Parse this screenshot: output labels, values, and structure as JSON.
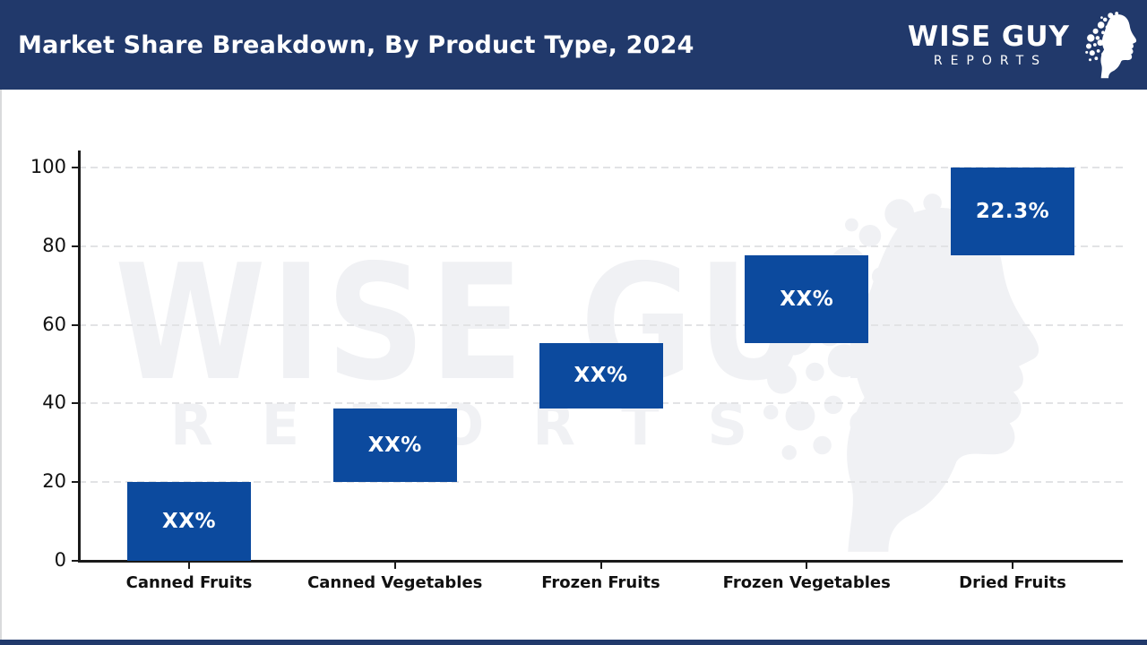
{
  "header": {
    "title": "Market Share Breakdown, By Product Type, 2024",
    "background_color": "#21396B",
    "logo": {
      "line1": "WISE GUY",
      "line2": "REPORTS",
      "icon": "wiseguy-head-icon",
      "color": "#ffffff"
    }
  },
  "watermark": {
    "line1": "WISE GUY",
    "line2": "REPORTS",
    "icon": "wiseguy-head-icon",
    "color": "#f0f1f4"
  },
  "footer": {
    "bar_color": "#21396B"
  },
  "chart_data": {
    "type": "bar",
    "subtype": "waterfall",
    "title": "Market Share Breakdown, By Product Type, 2024",
    "categories": [
      "Canned Fruits",
      "Canned Vegetables",
      "Frozen Fruits",
      "Frozen Vegetables",
      "Dried Fruits"
    ],
    "series": [
      {
        "name": "Market Share (%)",
        "segments": [
          {
            "category": "Canned Fruits",
            "start": 0,
            "end": 20,
            "label": "XX%"
          },
          {
            "category": "Canned Vegetables",
            "start": 20,
            "end": 38.7,
            "label": "XX%"
          },
          {
            "category": "Frozen Fruits",
            "start": 38.7,
            "end": 55.4,
            "label": "XX%"
          },
          {
            "category": "Frozen Vegetables",
            "start": 55.4,
            "end": 77.7,
            "label": "XX%"
          },
          {
            "category": "Dried Fruits",
            "start": 77.7,
            "end": 100,
            "label": "22.3%"
          }
        ]
      }
    ],
    "xlabel": "",
    "ylabel": "",
    "ylim": [
      0,
      100
    ],
    "yticks": [
      0,
      20,
      40,
      60,
      80,
      100
    ],
    "grid": "horizontal-dashed",
    "legend": "none",
    "bar_color": "#0C4A9E",
    "bar_label_color": "#FFFFFF",
    "axis_color": "#1a1a1a"
  }
}
